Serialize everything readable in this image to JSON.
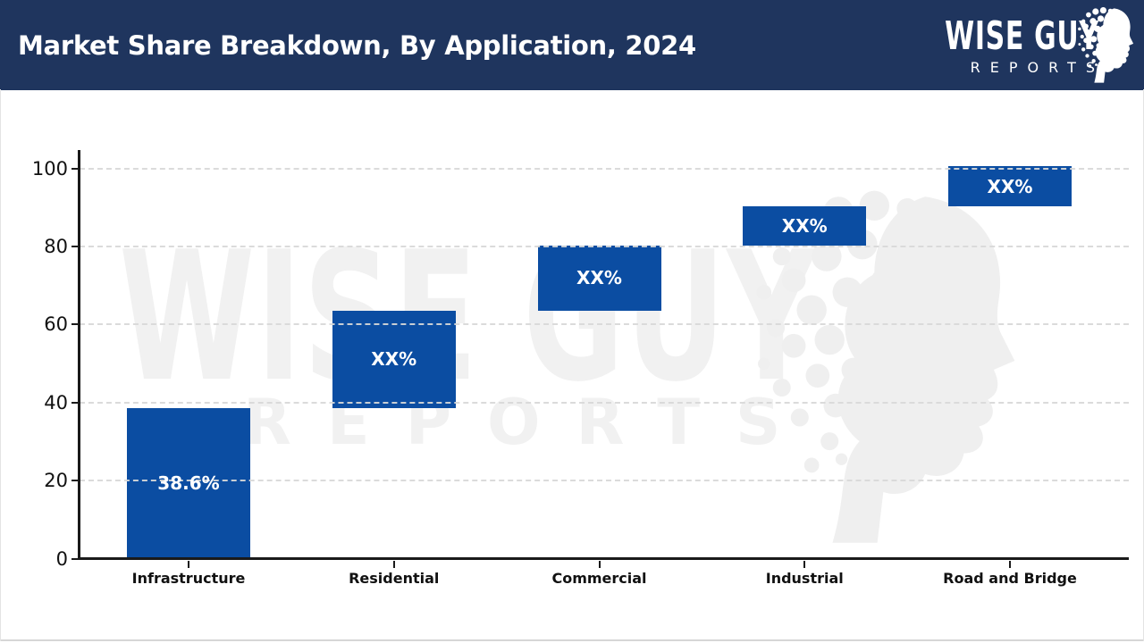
{
  "header": {
    "title": "Market Share Breakdown, By Application, 2024",
    "logo": {
      "brand_top": "WISE GUY",
      "brand_bottom": "REPORTS",
      "face_icon": "dotted-head-profile"
    }
  },
  "watermark": {
    "text_top": "WISE GUY",
    "text_bottom": "REPORTS",
    "face_icon": "dotted-head-profile"
  },
  "chart_data": {
    "type": "bar",
    "subtype": "waterfall",
    "title": "Market Share Breakdown, By Application, 2024",
    "categories": [
      "Infrastructure",
      "Residential",
      "Commercial",
      "Industrial",
      "Road and Bridge"
    ],
    "segments": [
      {
        "category": "Infrastructure",
        "start": 0,
        "end": 38.6,
        "value": 38.6,
        "label": "38.6%"
      },
      {
        "category": "Residential",
        "start": 38.6,
        "end": 63.6,
        "value": 25.0,
        "label": "XX%"
      },
      {
        "category": "Commercial",
        "start": 63.6,
        "end": 80.2,
        "value": 16.6,
        "label": "XX%"
      },
      {
        "category": "Industrial",
        "start": 80.2,
        "end": 90.3,
        "value": 10.1,
        "label": "XX%"
      },
      {
        "category": "Road and Bridge",
        "start": 90.3,
        "end": 100.5,
        "value": 10.2,
        "label": "XX%"
      }
    ],
    "yticks": [
      0,
      20,
      40,
      60,
      80,
      100
    ],
    "ylim": [
      0,
      105
    ],
    "xlabel": "",
    "ylabel": "",
    "grid": "horizontal-dashed",
    "legend": "none"
  },
  "colors": {
    "header_bg": "#1f355e",
    "bar": "#0b4da2",
    "bar_label": "#ffffff",
    "grid": "#d9d9d9",
    "axis": "#1a1a1a",
    "watermark": "#f1f1f1",
    "title_text": "#ffffff"
  }
}
